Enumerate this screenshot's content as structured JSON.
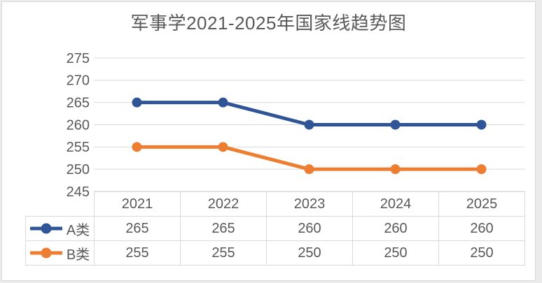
{
  "page": {
    "background_color": "#ebebeb",
    "card_background": "#ffffff",
    "border_color": "#d9d9d9",
    "text_color": "#595959"
  },
  "chart_data": {
    "type": "line",
    "title": "军事学2021-2025年国家线趋势图",
    "xlabel": "",
    "ylabel": "",
    "categories": [
      "2021",
      "2022",
      "2023",
      "2024",
      "2025"
    ],
    "series": [
      {
        "name": "A类",
        "color": "#2F5597",
        "values": [
          265,
          265,
          260,
          260,
          260
        ]
      },
      {
        "name": "B类",
        "color": "#ED7D31",
        "values": [
          255,
          255,
          250,
          250,
          250
        ]
      }
    ],
    "y_ticks": [
      275,
      270,
      265,
      260,
      255,
      250,
      245
    ],
    "ylim": [
      245,
      275
    ],
    "grid": true,
    "grid_color": "#d9d9d9",
    "legend_position": "data-table-left",
    "marker": "circle"
  }
}
